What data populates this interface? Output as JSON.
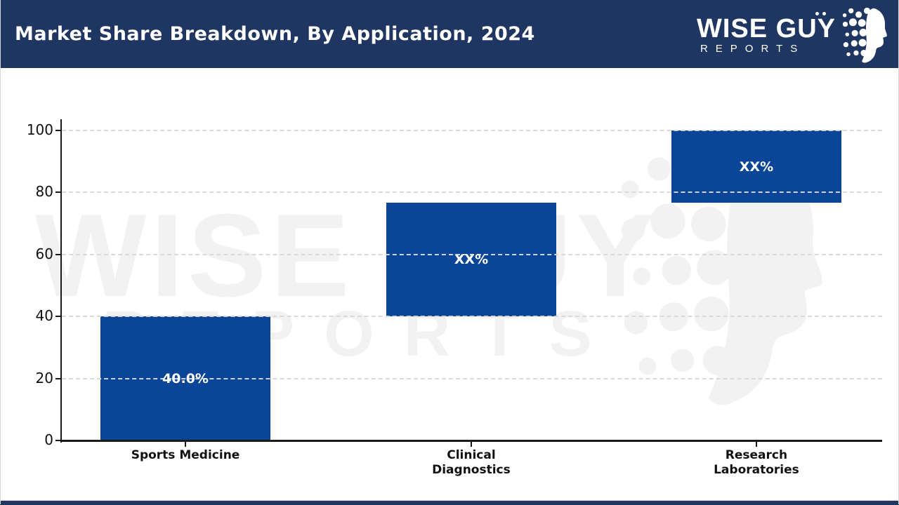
{
  "header": {
    "title": "Market Share Breakdown, By Application, 2024",
    "logo": {
      "line1": "WISE GUY",
      "line2": "REPORTS"
    }
  },
  "watermark": {
    "line1": "WISE GUY",
    "line2": "REPORTS"
  },
  "chart_data": {
    "type": "bar",
    "subtype": "waterfall-stacked",
    "title": "Market Share Breakdown, By Application, 2024",
    "categories": [
      "Sports Medicine",
      "Clinical Diagnostics",
      "Research Laboratories"
    ],
    "category_label_lines": [
      [
        "Sports Medicine"
      ],
      [
        "Clinical",
        "Diagnostics"
      ],
      [
        "Research",
        "Laboratories"
      ]
    ],
    "bars": [
      {
        "category": "Sports Medicine",
        "base": 0,
        "value": 40.0,
        "top": 40.0,
        "label": "40.0%"
      },
      {
        "category": "Clinical Diagnostics",
        "base": 40.0,
        "value": 36.6,
        "top": 76.6,
        "label": "XX%"
      },
      {
        "category": "Research Laboratories",
        "base": 76.6,
        "value": 23.4,
        "top": 100.0,
        "label": "XX%"
      }
    ],
    "ylim": [
      0,
      100
    ],
    "yticks": [
      0,
      20,
      40,
      60,
      80,
      100
    ],
    "grid": {
      "horizontal": true,
      "style": "dashed",
      "color": "#d9d9d9",
      "drawn_over_bars": true
    },
    "legend": null
  },
  "colors": {
    "header_bg": "#1f3562",
    "footer_bg": "#1f3562",
    "bar": "#0a4597",
    "bar_label": "#ffffff",
    "axis": "#1a1a1a",
    "tick_label": "#111111",
    "gridline": "#d9d9d9",
    "watermark": "#f2f2f2",
    "card_bg": "#ffffff"
  }
}
